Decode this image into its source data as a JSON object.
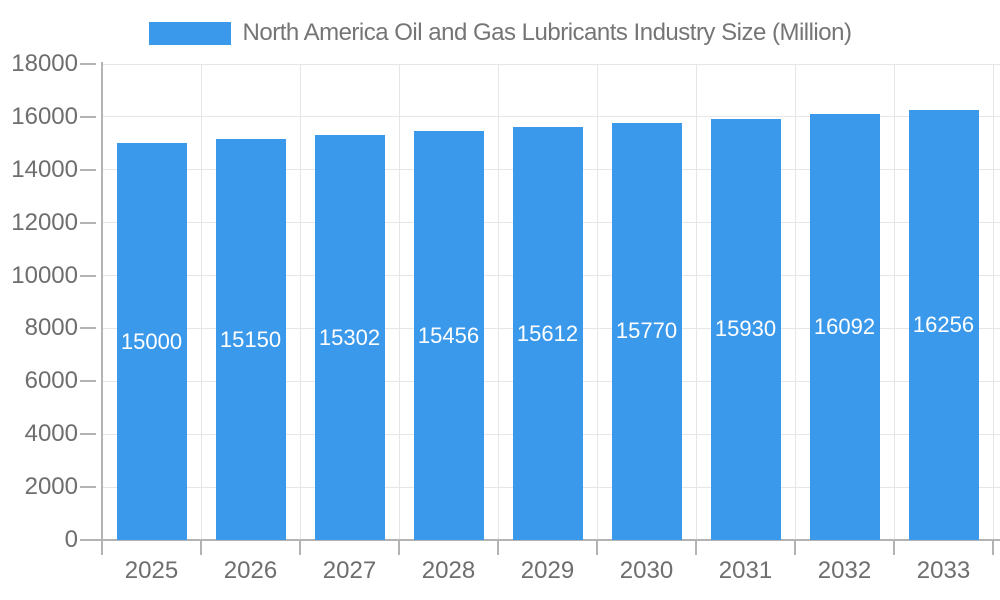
{
  "chart_data": {
    "type": "bar",
    "title": "North America Oil and Gas Lubricants Industry Size (Million)",
    "categories": [
      "2025",
      "2026",
      "2027",
      "2028",
      "2029",
      "2030",
      "2031",
      "2032",
      "2033"
    ],
    "values": [
      15000,
      15150,
      15302,
      15456,
      15612,
      15770,
      15930,
      16092,
      16256
    ],
    "series": [
      {
        "name": "North America Oil and Gas Lubricants Industry Size (Million)",
        "values": [
          15000,
          15150,
          15302,
          15456,
          15612,
          15770,
          15930,
          16092,
          16256
        ]
      }
    ],
    "xlabel": "",
    "ylabel": "",
    "ylim": [
      0,
      18000
    ],
    "yticks": [
      0,
      2000,
      4000,
      6000,
      8000,
      10000,
      12000,
      14000,
      16000,
      18000
    ],
    "grid": true,
    "legend_position": "top",
    "value_label_position": "inside-center",
    "colors": {
      "bar": "#3B99EC",
      "value_label": "#FFFFFF",
      "axis_line": "#B3B3B3",
      "gridline": "#E6E6E6",
      "tick_label": "#6E6E6E",
      "legend_text": "#757575",
      "background": "#FFFFFF"
    }
  }
}
